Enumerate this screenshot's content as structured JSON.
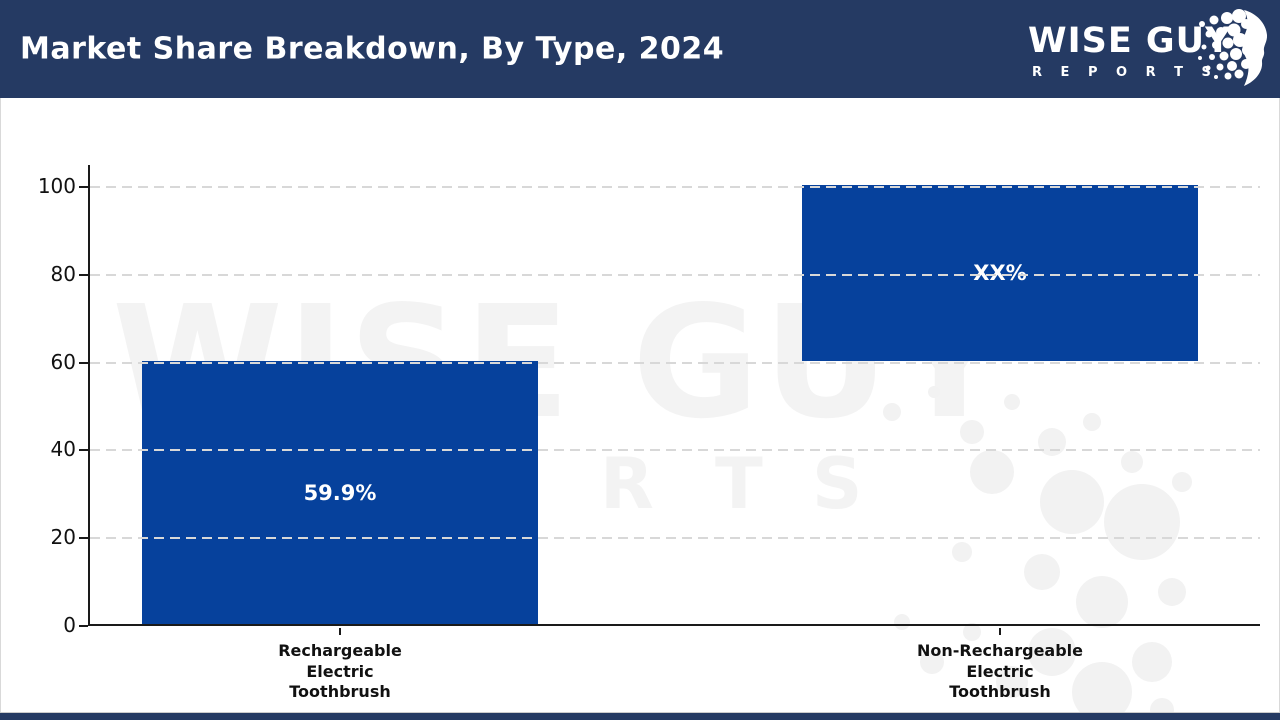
{
  "header": {
    "title": "Market Share Breakdown, By Type, 2024",
    "logo": {
      "line1": "WISE GUY",
      "line2": "R E P O R T S"
    }
  },
  "watermark": {
    "line1": "WISE GUY",
    "letters": [
      "R",
      "T",
      "S"
    ]
  },
  "chart_data": {
    "type": "bar",
    "title": "Market Share Breakdown, By Type, 2024",
    "categories": [
      "Rechargeable Electric Toothbrush",
      "Non-Rechargeable Electric Toothbrush"
    ],
    "bars": [
      {
        "category_lines": [
          "Rechargeable",
          "Electric",
          "Toothbrush"
        ],
        "label": "59.9%",
        "value_start": 0,
        "value_end": 59.9
      },
      {
        "category_lines": [
          "Non-Rechargeable",
          "Electric",
          "Toothbrush"
        ],
        "label": "XX%",
        "value_start": 60,
        "value_end": 100
      }
    ],
    "y_ticks": [
      0,
      20,
      40,
      60,
      80,
      100
    ],
    "ylim": [
      0,
      105
    ],
    "xlabel": "",
    "ylabel": "",
    "legend": "none",
    "grid": "horizontal-dashed",
    "bar_color": "#06419c",
    "value_suffix": "%"
  },
  "colors": {
    "header_bg": "#253a63",
    "footer_bg": "#253a63",
    "bar": "#06419c",
    "axis": "#1a1a1a",
    "gridline": "#d8d8d8",
    "watermark": "#f3f3f3",
    "header_text": "#ffffff",
    "tick_text": "#111111"
  }
}
